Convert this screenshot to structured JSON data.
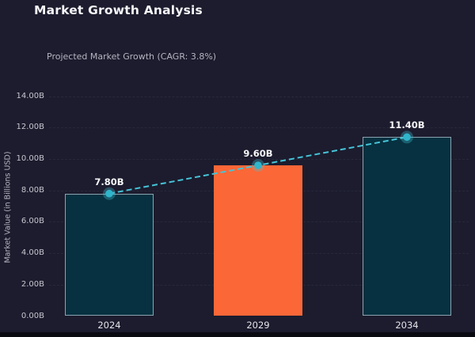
{
  "page": {
    "background": "#1c1c2e",
    "bottom_strip_color": "#0a0a11"
  },
  "chart_data": {
    "type": "bar",
    "title": "Market Growth Analysis",
    "subtitle": "Projected Market Growth (CAGR: 3.8%)",
    "ylabel": "Market Value (in Billions USD)",
    "xlabel": "",
    "categories": [
      "2024",
      "2029",
      "2034"
    ],
    "values": [
      7.8,
      9.6,
      11.4
    ],
    "value_labels": [
      "7.80B",
      "9.60B",
      "11.40B"
    ],
    "ylim": [
      0,
      14
    ],
    "ytick_step": 2,
    "ytick_labels": [
      "0.00B",
      "2.00B",
      "4.00B",
      "6.00B",
      "8.00B",
      "10.00B",
      "12.00B",
      "14.00B"
    ],
    "grid": true,
    "legend": "none",
    "bar_colors": [
      "#073140",
      "#fb6737",
      "#073140"
    ],
    "bar_border_colors": [
      "#8ba3b0",
      "none",
      "#8ba3b0"
    ],
    "trend_line": {
      "type": "line",
      "style": "dashed",
      "color": "#45c4d8",
      "marker": "circle",
      "marker_color": "#2fb5cc",
      "marker_glow_color": "rgba(69,196,216,0.32)"
    }
  }
}
